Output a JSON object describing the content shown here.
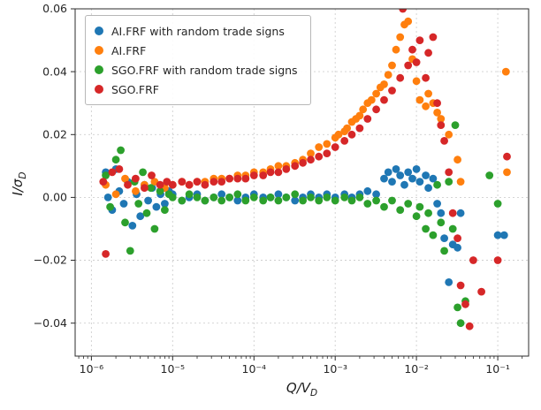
{
  "chart_data": {
    "type": "scatter",
    "x_scale": "log",
    "x_domain_log10": [
      -6.2,
      -0.62
    ],
    "y_domain": [
      -0.0505,
      0.06
    ],
    "xlabel_main": "Q/V",
    "xlabel_sub": "D",
    "ylabel_main": "I/σ",
    "ylabel_sub": "D",
    "grid": {
      "show": true,
      "color": "#cfcfcf",
      "dash": "2,3"
    },
    "legend_position": "upper-left",
    "x_ticks": [
      {
        "value": 1e-06,
        "label": "10⁻⁶"
      },
      {
        "value": 1e-05,
        "label": "10⁻⁵"
      },
      {
        "value": 0.0001,
        "label": "10⁻⁴"
      },
      {
        "value": 0.001,
        "label": "10⁻³"
      },
      {
        "value": 0.01,
        "label": "10⁻²"
      },
      {
        "value": 0.1,
        "label": "10⁻¹"
      }
    ],
    "y_ticks": [
      {
        "value": 0.06,
        "label": "0.06"
      },
      {
        "value": 0.04,
        "label": "0.04"
      },
      {
        "value": 0.02,
        "label": "0.02"
      },
      {
        "value": 0.0,
        "label": "0.00"
      },
      {
        "value": -0.02,
        "label": "−0.02"
      },
      {
        "value": -0.04,
        "label": "−0.04"
      }
    ],
    "series": [
      {
        "name": "AI.FRF with random trade signs",
        "color": "#1f77b4",
        "marker": "circle",
        "points": [
          [
            1.5e-06,
            0.008
          ],
          [
            1.6e-06,
            0.0
          ],
          [
            1.8e-06,
            -0.004
          ],
          [
            2e-06,
            0.009
          ],
          [
            2.2e-06,
            0.002
          ],
          [
            2.5e-06,
            -0.002
          ],
          [
            2.8e-06,
            0.005
          ],
          [
            3.2e-06,
            -0.009
          ],
          [
            3.6e-06,
            0.001
          ],
          [
            4e-06,
            -0.006
          ],
          [
            4.5e-06,
            0.004
          ],
          [
            5e-06,
            -0.001
          ],
          [
            5.6e-06,
            0.003
          ],
          [
            6.3e-06,
            -0.003
          ],
          [
            7.1e-06,
            0.001
          ],
          [
            8e-06,
            -0.002
          ],
          [
            9e-06,
            0.002
          ],
          [
            1e-05,
            0.001
          ],
          [
            1.3e-05,
            -0.001
          ],
          [
            1.6e-05,
            0.0
          ],
          [
            2e-05,
            0.001
          ],
          [
            2.5e-05,
            -0.001
          ],
          [
            3.2e-05,
            0.0
          ],
          [
            4e-05,
            0.001
          ],
          [
            5e-05,
            0.0
          ],
          [
            6.3e-05,
            -0.001
          ],
          [
            7.9e-05,
            0.0
          ],
          [
            0.0001,
            0.001
          ],
          [
            0.00013,
            0.0
          ],
          [
            0.00016,
            0.0
          ],
          [
            0.0002,
            0.001
          ],
          [
            0.00025,
            0.0
          ],
          [
            0.00032,
            -0.001
          ],
          [
            0.0004,
            0.0
          ],
          [
            0.0005,
            0.001
          ],
          [
            0.00063,
            0.0
          ],
          [
            0.00079,
            0.001
          ],
          [
            0.001,
            0.0
          ],
          [
            0.0013,
            0.001
          ],
          [
            0.0016,
            0.0
          ],
          [
            0.002,
            0.001
          ],
          [
            0.0025,
            0.002
          ],
          [
            0.0032,
            0.001
          ],
          [
            0.004,
            0.006
          ],
          [
            0.0045,
            0.008
          ],
          [
            0.005,
            0.005
          ],
          [
            0.0056,
            0.009
          ],
          [
            0.0063,
            0.007
          ],
          [
            0.0071,
            0.004
          ],
          [
            0.0079,
            0.008
          ],
          [
            0.0089,
            0.006
          ],
          [
            0.01,
            0.009
          ],
          [
            0.011,
            0.005
          ],
          [
            0.013,
            0.007
          ],
          [
            0.014,
            0.003
          ],
          [
            0.016,
            0.006
          ],
          [
            0.018,
            -0.002
          ],
          [
            0.02,
            -0.005
          ],
          [
            0.022,
            -0.013
          ],
          [
            0.025,
            -0.027
          ],
          [
            0.028,
            -0.015
          ],
          [
            0.032,
            -0.016
          ],
          [
            0.035,
            -0.005
          ],
          [
            0.1,
            -0.012
          ],
          [
            0.12,
            -0.012
          ]
        ]
      },
      {
        "name": "AI.FRF",
        "color": "#ff7f0e",
        "marker": "circle",
        "points": [
          [
            1.5e-06,
            0.004
          ],
          [
            2e-06,
            0.001
          ],
          [
            2.6e-06,
            0.006
          ],
          [
            3.5e-06,
            0.002
          ],
          [
            4.5e-06,
            0.004
          ],
          [
            6e-06,
            0.005
          ],
          [
            8e-06,
            0.003
          ],
          [
            1e-05,
            0.004
          ],
          [
            1.3e-05,
            0.005
          ],
          [
            1.6e-05,
            0.004
          ],
          [
            2e-05,
            0.005
          ],
          [
            2.5e-05,
            0.005
          ],
          [
            3.2e-05,
            0.006
          ],
          [
            4e-05,
            0.006
          ],
          [
            5e-05,
            0.006
          ],
          [
            6.3e-05,
            0.007
          ],
          [
            7.9e-05,
            0.007
          ],
          [
            0.0001,
            0.008
          ],
          [
            0.00013,
            0.008
          ],
          [
            0.00016,
            0.009
          ],
          [
            0.0002,
            0.01
          ],
          [
            0.00025,
            0.01
          ],
          [
            0.00032,
            0.011
          ],
          [
            0.0004,
            0.012
          ],
          [
            0.0005,
            0.014
          ],
          [
            0.00063,
            0.016
          ],
          [
            0.00079,
            0.017
          ],
          [
            0.001,
            0.019
          ],
          [
            0.0011,
            0.02
          ],
          [
            0.0013,
            0.021
          ],
          [
            0.0014,
            0.022
          ],
          [
            0.0016,
            0.024
          ],
          [
            0.0018,
            0.025
          ],
          [
            0.002,
            0.026
          ],
          [
            0.0022,
            0.028
          ],
          [
            0.0025,
            0.03
          ],
          [
            0.0028,
            0.031
          ],
          [
            0.0032,
            0.033
          ],
          [
            0.0036,
            0.035
          ],
          [
            0.004,
            0.036
          ],
          [
            0.0045,
            0.039
          ],
          [
            0.005,
            0.042
          ],
          [
            0.0056,
            0.047
          ],
          [
            0.0063,
            0.051
          ],
          [
            0.0071,
            0.055
          ],
          [
            0.0079,
            0.056
          ],
          [
            0.0089,
            0.044
          ],
          [
            0.01,
            0.037
          ],
          [
            0.011,
            0.031
          ],
          [
            0.013,
            0.029
          ],
          [
            0.014,
            0.033
          ],
          [
            0.016,
            0.03
          ],
          [
            0.018,
            0.027
          ],
          [
            0.02,
            0.025
          ],
          [
            0.025,
            0.02
          ],
          [
            0.032,
            0.012
          ],
          [
            0.035,
            0.005
          ],
          [
            0.126,
            0.04
          ],
          [
            0.13,
            0.008
          ]
        ]
      },
      {
        "name": "SGO.FRF with random trade signs",
        "color": "#2ca02c",
        "marker": "circle",
        "points": [
          [
            1.5e-06,
            0.007
          ],
          [
            1.7e-06,
            -0.003
          ],
          [
            2e-06,
            0.012
          ],
          [
            2.3e-06,
            0.015
          ],
          [
            2.6e-06,
            -0.008
          ],
          [
            3e-06,
            -0.017
          ],
          [
            3.4e-06,
            0.005
          ],
          [
            3.8e-06,
            -0.002
          ],
          [
            4.3e-06,
            0.008
          ],
          [
            4.8e-06,
            -0.005
          ],
          [
            5.4e-06,
            0.003
          ],
          [
            6e-06,
            -0.01
          ],
          [
            7e-06,
            0.002
          ],
          [
            8e-06,
            -0.004
          ],
          [
            9e-06,
            0.001
          ],
          [
            1e-05,
            0.0
          ],
          [
            1.3e-05,
            -0.001
          ],
          [
            1.6e-05,
            0.001
          ],
          [
            2e-05,
            0.0
          ],
          [
            2.5e-05,
            -0.001
          ],
          [
            3.2e-05,
            0.0
          ],
          [
            4e-05,
            -0.001
          ],
          [
            5e-05,
            0.0
          ],
          [
            6.3e-05,
            0.001
          ],
          [
            7.9e-05,
            -0.001
          ],
          [
            0.0001,
            0.0
          ],
          [
            0.00013,
            -0.001
          ],
          [
            0.00016,
            0.0
          ],
          [
            0.0002,
            -0.001
          ],
          [
            0.00025,
            0.0
          ],
          [
            0.00032,
            0.001
          ],
          [
            0.0004,
            -0.001
          ],
          [
            0.0005,
            0.0
          ],
          [
            0.00063,
            -0.001
          ],
          [
            0.00079,
            0.0
          ],
          [
            0.001,
            -0.001
          ],
          [
            0.0013,
            0.0
          ],
          [
            0.0016,
            -0.001
          ],
          [
            0.002,
            0.0
          ],
          [
            0.0025,
            -0.002
          ],
          [
            0.0032,
            -0.001
          ],
          [
            0.004,
            -0.003
          ],
          [
            0.005,
            -0.001
          ],
          [
            0.0063,
            -0.004
          ],
          [
            0.0079,
            -0.002
          ],
          [
            0.01,
            -0.006
          ],
          [
            0.011,
            -0.003
          ],
          [
            0.013,
            -0.01
          ],
          [
            0.014,
            -0.005
          ],
          [
            0.016,
            -0.012
          ],
          [
            0.018,
            0.004
          ],
          [
            0.02,
            -0.008
          ],
          [
            0.022,
            -0.017
          ],
          [
            0.025,
            0.005
          ],
          [
            0.028,
            -0.01
          ],
          [
            0.03,
            0.023
          ],
          [
            0.032,
            -0.035
          ],
          [
            0.035,
            -0.04
          ],
          [
            0.04,
            -0.033
          ],
          [
            0.079,
            0.007
          ],
          [
            0.1,
            -0.002
          ]
        ]
      },
      {
        "name": "SGO.FRF",
        "color": "#d62728",
        "marker": "circle",
        "points": [
          [
            1.4e-06,
            0.005
          ],
          [
            1.5e-06,
            -0.018
          ],
          [
            1.8e-06,
            0.008
          ],
          [
            2.2e-06,
            0.009
          ],
          [
            2.8e-06,
            0.004
          ],
          [
            3.5e-06,
            0.006
          ],
          [
            4.5e-06,
            0.003
          ],
          [
            5.5e-06,
            0.007
          ],
          [
            7e-06,
            0.004
          ],
          [
            8.5e-06,
            0.005
          ],
          [
            1e-05,
            0.004
          ],
          [
            1.3e-05,
            0.005
          ],
          [
            1.6e-05,
            0.004
          ],
          [
            2e-05,
            0.005
          ],
          [
            2.5e-05,
            0.004
          ],
          [
            3.2e-05,
            0.005
          ],
          [
            4e-05,
            0.005
          ],
          [
            5e-05,
            0.006
          ],
          [
            6.3e-05,
            0.006
          ],
          [
            7.9e-05,
            0.006
          ],
          [
            0.0001,
            0.007
          ],
          [
            0.00013,
            0.007
          ],
          [
            0.00016,
            0.008
          ],
          [
            0.0002,
            0.008
          ],
          [
            0.00025,
            0.009
          ],
          [
            0.00032,
            0.01
          ],
          [
            0.0004,
            0.011
          ],
          [
            0.0005,
            0.012
          ],
          [
            0.00063,
            0.013
          ],
          [
            0.00079,
            0.014
          ],
          [
            0.001,
            0.016
          ],
          [
            0.0013,
            0.018
          ],
          [
            0.0016,
            0.02
          ],
          [
            0.002,
            0.022
          ],
          [
            0.0025,
            0.025
          ],
          [
            0.0032,
            0.028
          ],
          [
            0.004,
            0.031
          ],
          [
            0.005,
            0.034
          ],
          [
            0.0063,
            0.038
          ],
          [
            0.0068,
            0.06
          ],
          [
            0.0079,
            0.042
          ],
          [
            0.0089,
            0.047
          ],
          [
            0.01,
            0.043
          ],
          [
            0.011,
            0.05
          ],
          [
            0.013,
            0.038
          ],
          [
            0.014,
            0.046
          ],
          [
            0.016,
            0.051
          ],
          [
            0.018,
            0.03
          ],
          [
            0.02,
            0.023
          ],
          [
            0.022,
            0.018
          ],
          [
            0.025,
            0.008
          ],
          [
            0.028,
            -0.005
          ],
          [
            0.032,
            -0.013
          ],
          [
            0.035,
            -0.028
          ],
          [
            0.04,
            -0.034
          ],
          [
            0.045,
            -0.041
          ],
          [
            0.05,
            -0.02
          ],
          [
            0.063,
            -0.03
          ],
          [
            0.1,
            -0.02
          ],
          [
            0.13,
            0.013
          ]
        ]
      }
    ]
  }
}
